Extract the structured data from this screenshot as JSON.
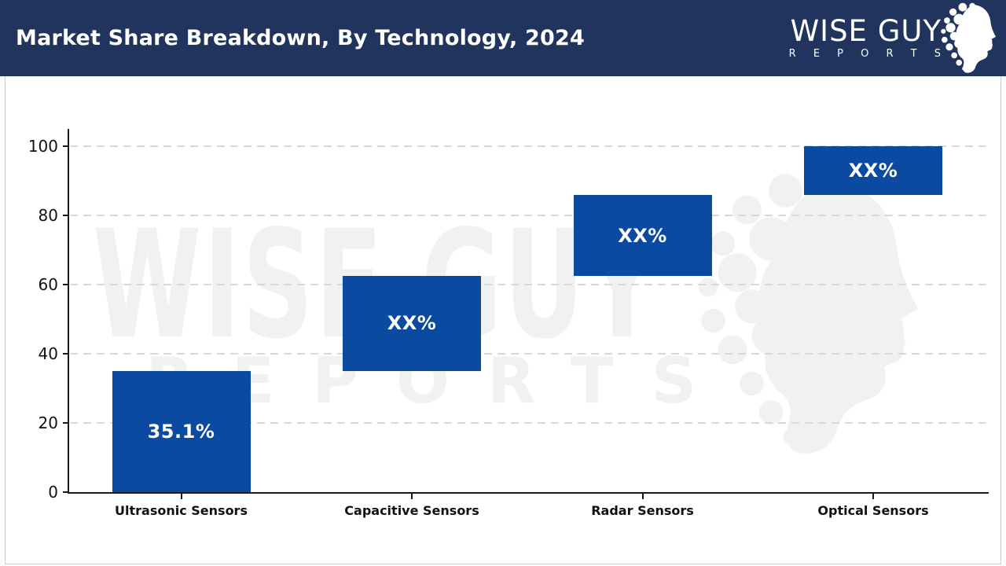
{
  "header": {
    "title": "Market Share Breakdown, By Technology, 2024",
    "background_color": "#21345e",
    "logo": {
      "line1": "WISE GUY",
      "line2": "R E P O R T S"
    }
  },
  "watermark": {
    "line1": "WISE GUY",
    "line2": "REPORTS"
  },
  "chart_data": {
    "type": "bar",
    "variant": "waterfall-floating-bars",
    "title": "Market Share Breakdown, By Technology, 2024",
    "categories": [
      "Ultrasonic Sensors",
      "Capacitive Sensors",
      "Radar Sensors",
      "Optical Sensors"
    ],
    "segments": [
      {
        "category": "Ultrasonic Sensors",
        "start": 0,
        "end": 35.1,
        "label": "35.1%"
      },
      {
        "category": "Capacitive Sensors",
        "start": 35.1,
        "end": 62.4,
        "label": "XX%"
      },
      {
        "category": "Radar Sensors",
        "start": 62.4,
        "end": 85.8,
        "label": "XX%"
      },
      {
        "category": "Optical Sensors",
        "start": 85.9,
        "end": 100.0,
        "label": "XX%"
      }
    ],
    "bar_color": "#0b4aa1",
    "bar_label_color": "#ffffff",
    "yticks": [
      0,
      20,
      40,
      60,
      80,
      100
    ],
    "ylim": [
      0,
      105
    ],
    "xlabel": "",
    "ylabel": "",
    "grid": "horizontal-dashed",
    "grid_color": "#d8d8d8",
    "legend": false
  }
}
